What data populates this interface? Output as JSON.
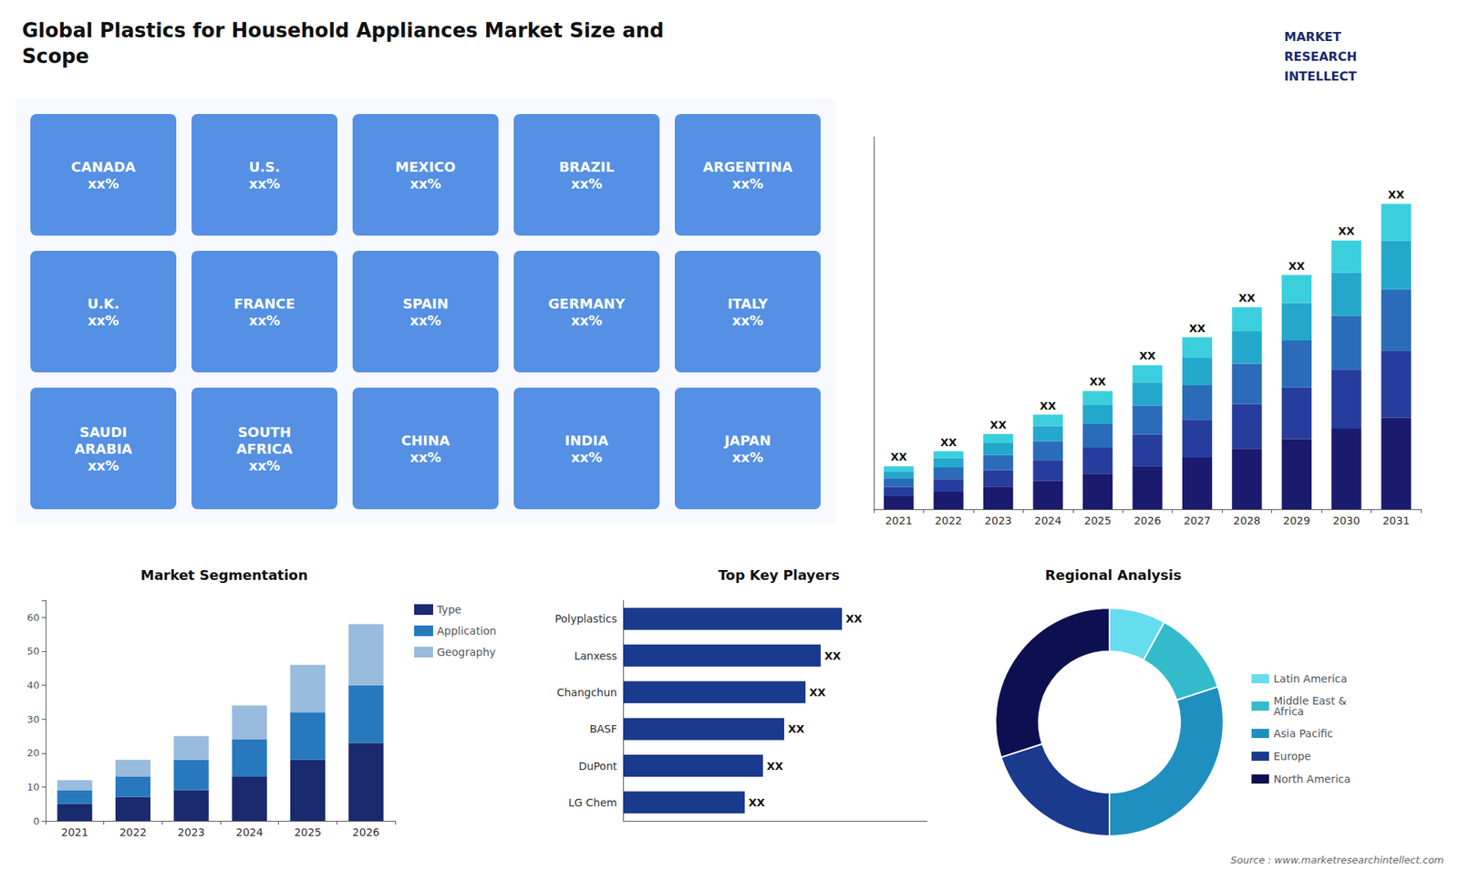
{
  "title": "Global Plastics for Household Appliances Market Size and\nScope",
  "annotations": [
    "MARKET",
    "RESEARCH",
    "INTELLECT",
    "Source : www.marketresearchintellect.com"
  ],
  "chart_data": [
    {
      "type": "map",
      "annotations": [
        "CANADA\nxx%",
        "U.S.\nxx%",
        "MEXICO\nxx%",
        "BRAZIL\nxx%",
        "ARGENTINA\nxx%",
        "U.K.\nxx%",
        "FRANCE\nxx%",
        "SPAIN\nxx%",
        "GERMANY\nxx%",
        "ITALY\nxx%",
        "SAUDI\nARABIA\nxx%",
        "SOUTH\nAFRICA\nxx%",
        "CHINA\nxx%",
        "INDIA\nxx%",
        "JAPAN\nxx%"
      ]
    },
    {
      "type": "bar",
      "categories": [
        "2021",
        "2022",
        "2023",
        "2024",
        "2025",
        "2026",
        "2027",
        "2028",
        "2029",
        "2030",
        "2031"
      ],
      "stacked": true,
      "series": [
        {
          "color": "#1a1a6e",
          "values": [
            0.3,
            0.405,
            0.525,
            0.66,
            0.825,
            1.005,
            1.2,
            1.41,
            1.635,
            1.875,
            2.13
          ]
        },
        {
          "color": "#263d9e",
          "values": [
            0.22,
            0.297,
            0.385,
            0.484,
            0.605,
            0.737,
            0.88,
            1.034,
            1.199,
            1.375,
            1.562
          ]
        },
        {
          "color": "#2a6bba",
          "values": [
            0.2,
            0.27,
            0.35,
            0.44,
            0.55,
            0.67,
            0.8,
            0.94,
            1.09,
            1.25,
            1.42
          ]
        },
        {
          "color": "#23a8cc",
          "values": [
            0.16,
            0.216,
            0.28,
            0.352,
            0.44,
            0.536,
            0.64,
            0.752,
            0.872,
            1.0,
            1.136
          ]
        },
        {
          "color": "#3bcfdd",
          "values": [
            0.12,
            0.162,
            0.21,
            0.264,
            0.33,
            0.402,
            0.48,
            0.564,
            0.654,
            0.75,
            0.852
          ]
        }
      ],
      "ylim": [
        0,
        8.662
      ],
      "tick_labels": "x",
      "grid": false,
      "annotations": [
        {
          "category": "2021",
          "text": "XX"
        },
        {
          "category": "2022",
          "text": "XX"
        },
        {
          "category": "2023",
          "text": "XX"
        },
        {
          "category": "2024",
          "text": "XX"
        },
        {
          "category": "2025",
          "text": "XX"
        },
        {
          "category": "2026",
          "text": "XX"
        },
        {
          "category": "2027",
          "text": "XX"
        },
        {
          "category": "2028",
          "text": "XX"
        },
        {
          "category": "2029",
          "text": "XX"
        },
        {
          "category": "2030",
          "text": "XX"
        },
        {
          "category": "2031",
          "text": "XX"
        }
      ]
    },
    {
      "type": "bar",
      "title": "Market Segmentation",
      "categories": [
        "2021",
        "2022",
        "2023",
        "2024",
        "2025",
        "2026"
      ],
      "stacked": true,
      "series": [
        {
          "name": "Type",
          "color": "#1a2a6e",
          "values": [
            5,
            7,
            9,
            13,
            18,
            23
          ]
        },
        {
          "name": "Application",
          "color": "#2878be",
          "values": [
            4,
            6,
            9,
            11,
            14,
            17
          ]
        },
        {
          "name": "Geography",
          "color": "#99bbdd",
          "values": [
            3,
            5,
            7,
            10,
            14,
            18
          ]
        }
      ],
      "ylim": [
        0,
        65
      ],
      "yticks": [
        0,
        10,
        20,
        30,
        40,
        50,
        60
      ],
      "grid": false,
      "legend": "upper right"
    },
    {
      "type": "bar",
      "title": "Top Key Players",
      "orientation": "horizontal",
      "categories": [
        "Polyplastics",
        "Lanxess",
        "Changchun",
        "BASF",
        "DuPont",
        "LG Chem"
      ],
      "values": [
        0.72,
        0.65,
        0.6,
        0.53,
        0.46,
        0.4
      ],
      "color": "#1a3a8e",
      "xlim": [
        0,
        1.0
      ],
      "tick_labels": "y",
      "grid": false,
      "annotations": [
        {
          "category": "Polyplastics",
          "text": "XX"
        },
        {
          "category": "Lanxess",
          "text": "XX"
        },
        {
          "category": "Changchun",
          "text": "XX"
        },
        {
          "category": "BASF",
          "text": "XX"
        },
        {
          "category": "DuPont",
          "text": "XX"
        },
        {
          "category": "LG Chem",
          "text": "XX"
        }
      ]
    },
    {
      "type": "pie",
      "title": "Regional Analysis",
      "categories": [
        "Latin America",
        "Middle East &\nAfrica",
        "Asia Pacific",
        "Europe",
        "North America"
      ],
      "values": [
        0.08,
        0.12,
        0.3,
        0.2,
        0.3
      ],
      "colors": [
        "#66ddee",
        "#33bbcc",
        "#1f8fbf",
        "#1a3a8e",
        "#0d1050"
      ],
      "legend": "right"
    }
  ]
}
